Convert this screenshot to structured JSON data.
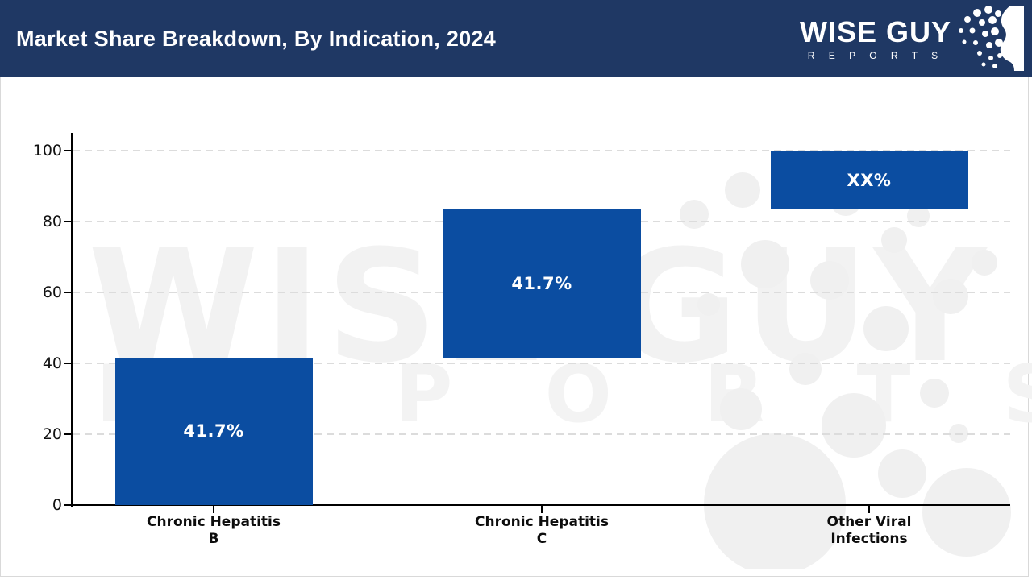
{
  "header": {
    "title": "Market Share Breakdown, By Indication, 2024",
    "bg_color": "#1f3864",
    "logo": {
      "line1": "WISE GUY",
      "line2": "R E P O R T S"
    }
  },
  "watermark": {
    "line1": "WISE GUY",
    "line2": "R E P O R T S"
  },
  "chart_data": {
    "type": "bar",
    "subtype": "stacked-waterfall",
    "title": "Market Share Breakdown, By Indication, 2024",
    "categories": [
      "Chronic Hepatitis\nB",
      "Chronic Hepatitis\nC",
      "Other Viral\nInfections"
    ],
    "segments": [
      {
        "category": "Chronic Hepatitis B",
        "start": 0,
        "end": 41.7,
        "label": "41.7%"
      },
      {
        "category": "Chronic Hepatitis C",
        "start": 41.7,
        "end": 83.4,
        "label": "41.7%"
      },
      {
        "category": "Other Viral Infections",
        "start": 83.4,
        "end": 100,
        "label": "XX%"
      }
    ],
    "yticks": [
      0,
      20,
      40,
      60,
      80,
      100
    ],
    "ylim": [
      0,
      105
    ],
    "bar_color": "#0b4da1",
    "bar_label_color": "#ffffff",
    "grid": {
      "axis": "y",
      "style": "dashed",
      "color": "#dcdcdc"
    },
    "legend": "none"
  }
}
